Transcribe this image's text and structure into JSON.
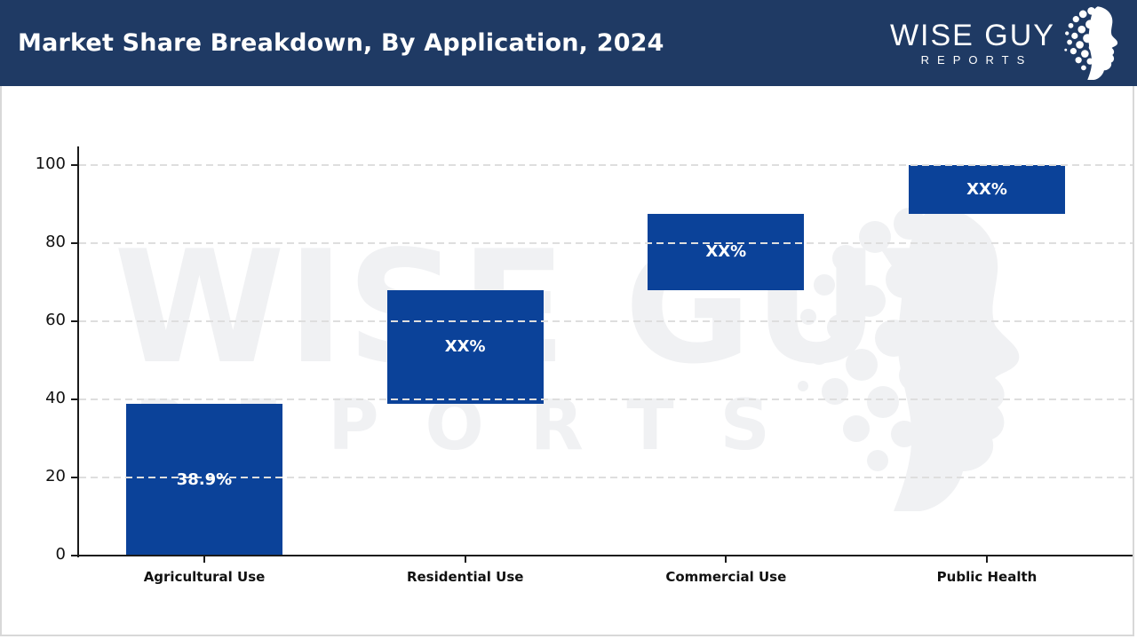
{
  "header": {
    "title": "Market Share Breakdown, By Application, 2024",
    "logo": {
      "line1": "WISE GUY",
      "line2": "REPORTS"
    }
  },
  "watermark": {
    "line1": "WISE GUY",
    "line2": "REPORTS"
  },
  "colors": {
    "header_bg": "#1f3a64",
    "bar": "#0b4299",
    "axis": "#1a1a1a",
    "grid": "#dedede",
    "bar_label": "#ffffff",
    "watermark": "#f0f1f3"
  },
  "chart_data": {
    "type": "bar",
    "subtype": "waterfall",
    "title": "Market Share Breakdown, By Application, 2024",
    "categories": [
      "Agricultural Use",
      "Residential Use",
      "Commercial Use",
      "Public Health"
    ],
    "yticks": [
      0,
      20,
      40,
      60,
      80,
      100
    ],
    "ylim": [
      0,
      105
    ],
    "grid": "horizontal-dashed",
    "legend": "none",
    "series": [
      {
        "name": "Market Share",
        "segments": [
          {
            "category": "Agricultural Use",
            "start": 0,
            "end": 38.9,
            "label": "38.9%"
          },
          {
            "category": "Residential Use",
            "start": 38.9,
            "end": 68,
            "label": "XX%"
          },
          {
            "category": "Commercial Use",
            "start": 68,
            "end": 87.5,
            "label": "XX%"
          },
          {
            "category": "Public Health",
            "start": 87.5,
            "end": 100,
            "label": "XX%"
          }
        ]
      }
    ]
  }
}
